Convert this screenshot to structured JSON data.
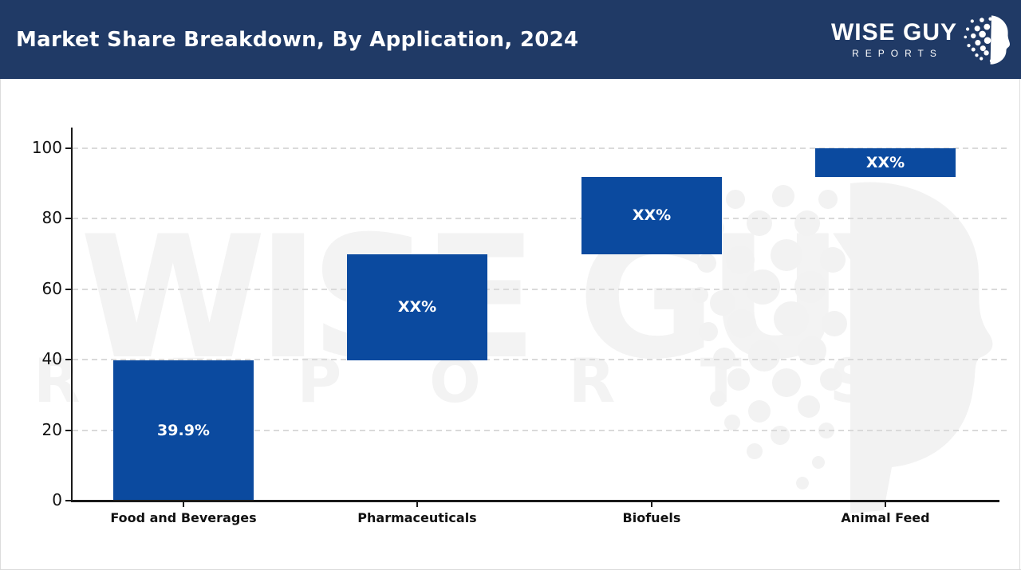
{
  "header": {
    "title": "Market Share Breakdown, By Application, 2024",
    "bg_color": "#203a66"
  },
  "logo": {
    "line1": "WISE GUY",
    "line2": "REPORTS"
  },
  "watermark": {
    "line1": "WISE GUY",
    "line2": "REPORTS",
    "color": "#f3f3f3"
  },
  "chart_data": {
    "type": "bar",
    "subtype": "floating-waterfall",
    "title": "Market Share Breakdown, By Application, 2024",
    "categories": [
      "Food and Beverages",
      "Pharmaceuticals",
      "Biofuels",
      "Animal Feed"
    ],
    "segments": [
      {
        "category": "Food and Beverages",
        "start": 0,
        "end": 39.9,
        "label": "39.9%"
      },
      {
        "category": "Pharmaceuticals",
        "start": 39.9,
        "end": 70,
        "label": "XX%"
      },
      {
        "category": "Biofuels",
        "start": 70,
        "end": 91.9,
        "label": "XX%"
      },
      {
        "category": "Animal Feed",
        "start": 91.9,
        "end": 100,
        "label": "XX%"
      }
    ],
    "ylim": [
      0,
      100
    ],
    "yticks": [
      0,
      20,
      40,
      60,
      80,
      100
    ],
    "grid": {
      "horizontal": true,
      "style": "dashed",
      "color": "#dadada"
    },
    "legend": null,
    "colors": {
      "bar": "#0b4a9f",
      "bar_label": "#ffffff",
      "axis": "#1a1a1a",
      "tick_label": "#111111",
      "header_bg": "#203a66"
    }
  }
}
